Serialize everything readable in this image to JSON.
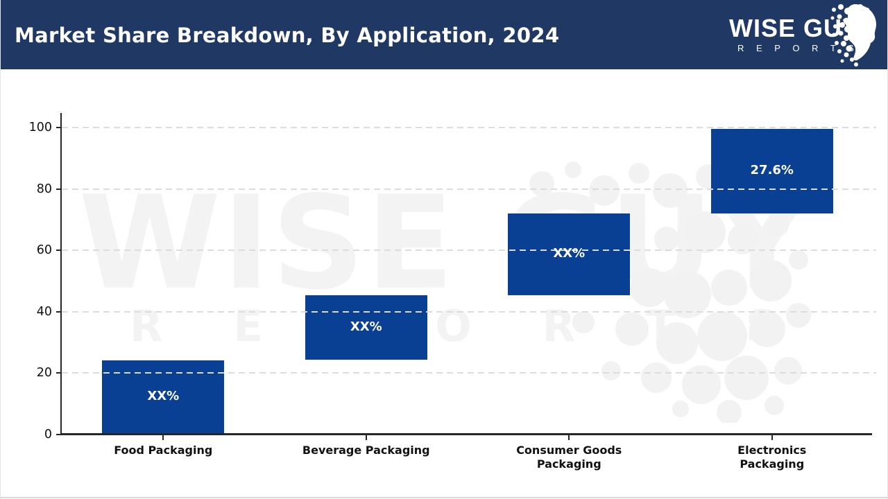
{
  "header": {
    "title": "Market Share Breakdown, By Application, 2024",
    "brand_top": "WISE GUY",
    "brand_bottom": "R E P O R T S"
  },
  "watermark": {
    "line1": "WISE GUY",
    "line2": "R E P O R T S"
  },
  "chart_data": {
    "type": "bar",
    "subtype": "floating-waterfall",
    "title": "Market Share Breakdown, By Application, 2024",
    "categories": [
      "Food Packaging",
      "Beverage Packaging",
      "Consumer Goods Packaging",
      "Electronics Packaging"
    ],
    "category_label_lines": [
      [
        "Food Packaging"
      ],
      [
        "Beverage Packaging"
      ],
      [
        "Consumer Goods",
        "Packaging"
      ],
      [
        "Electronics",
        "Packaging"
      ]
    ],
    "bars": [
      {
        "category": "Food Packaging",
        "start": 0,
        "end": 24.1,
        "label": "XX%"
      },
      {
        "category": "Beverage Packaging",
        "start": 24.3,
        "end": 45.3,
        "label": "XX%"
      },
      {
        "category": "Consumer Goods Packaging",
        "start": 45.3,
        "end": 72.0,
        "label": "XX%"
      },
      {
        "category": "Electronics Packaging",
        "start": 72.0,
        "end": 99.6,
        "label": "27.6%"
      }
    ],
    "yticks": [
      0,
      20,
      40,
      60,
      80,
      100
    ],
    "ylim": [
      0,
      104.7
    ],
    "xlabel": "",
    "ylabel": "",
    "grid": "horizontal-dashed",
    "legend": "none",
    "bar_color": "#0a4094",
    "bar_label_color": "#ffffff"
  },
  "colors": {
    "header_bg": "#1f3864",
    "bar": "#0a4094",
    "grid": "#dcdcdc",
    "axis": "#262626",
    "text": "#111111",
    "watermark": "#f3f3f3",
    "bottom_rule": "#d9d9d9"
  }
}
